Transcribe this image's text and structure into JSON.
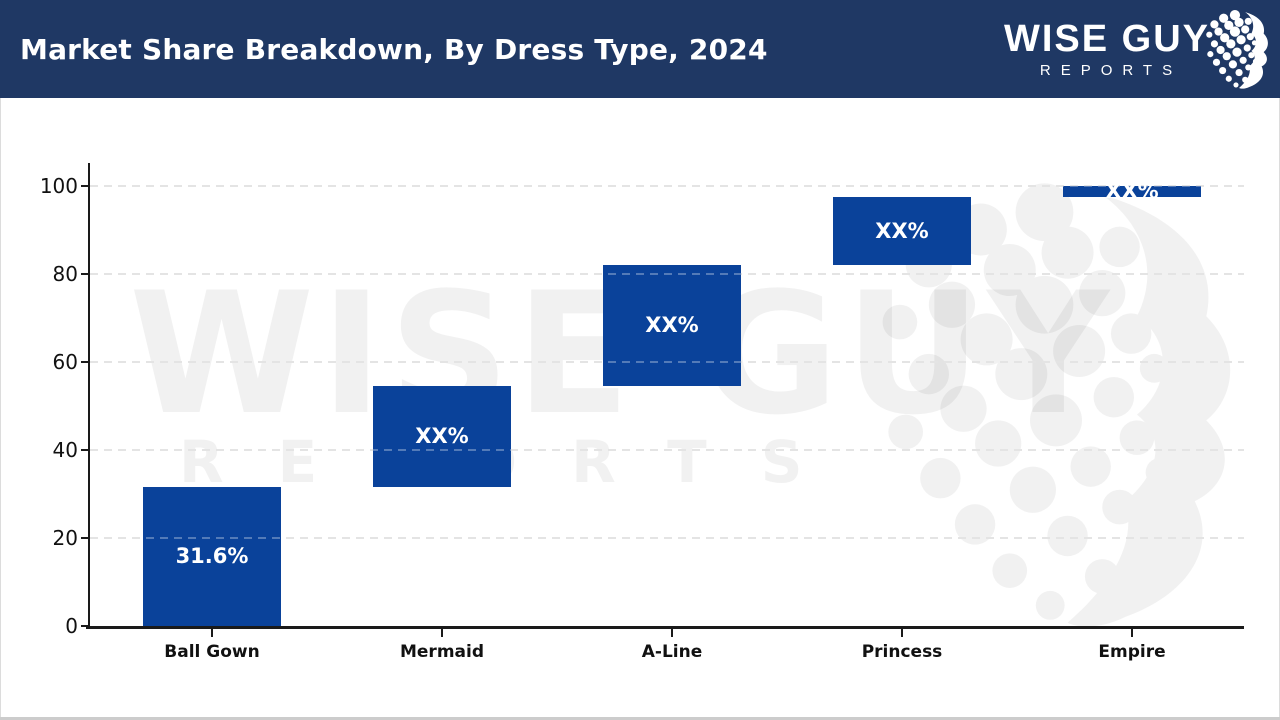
{
  "header": {
    "title": "Market Share Breakdown, By Dress Type, 2024",
    "logo": {
      "line1": "WISE GUY",
      "line2": "REPORTS"
    }
  },
  "watermark": {
    "line1": "WISE GUY",
    "line2": "REPORTS"
  },
  "colors": {
    "header_bg": "#1f3864",
    "bar": "#0a429a",
    "bar_label": "#ffffff",
    "grid": "#d9d9d9",
    "axis": "#1a1a1a",
    "page_border": "#cccccc"
  },
  "chart_data": {
    "type": "bar",
    "subtype": "waterfall",
    "title": "Market Share Breakdown, By Dress Type, 2024",
    "categories": [
      "Ball Gown",
      "Mermaid",
      "A-Line",
      "Princess",
      "Empire"
    ],
    "bars": [
      {
        "category": "Ball Gown",
        "start": 0,
        "end": 31.6,
        "label": "31.6%"
      },
      {
        "category": "Mermaid",
        "start": 31.6,
        "end": 54.5,
        "label": "XX%"
      },
      {
        "category": "A-Line",
        "start": 54.5,
        "end": 82.0,
        "label": "XX%"
      },
      {
        "category": "Princess",
        "start": 82.0,
        "end": 97.5,
        "label": "XX%"
      },
      {
        "category": "Empire",
        "start": 97.5,
        "end": 100,
        "label": "XX%"
      }
    ],
    "xlabel": "",
    "ylabel": "",
    "yticks": [
      0,
      20,
      40,
      60,
      80,
      100
    ],
    "ylim": [
      0,
      100
    ],
    "grid": "horizontal dashed",
    "legend": "none",
    "bar_color": "#0a429a",
    "label_color": "#ffffff"
  }
}
